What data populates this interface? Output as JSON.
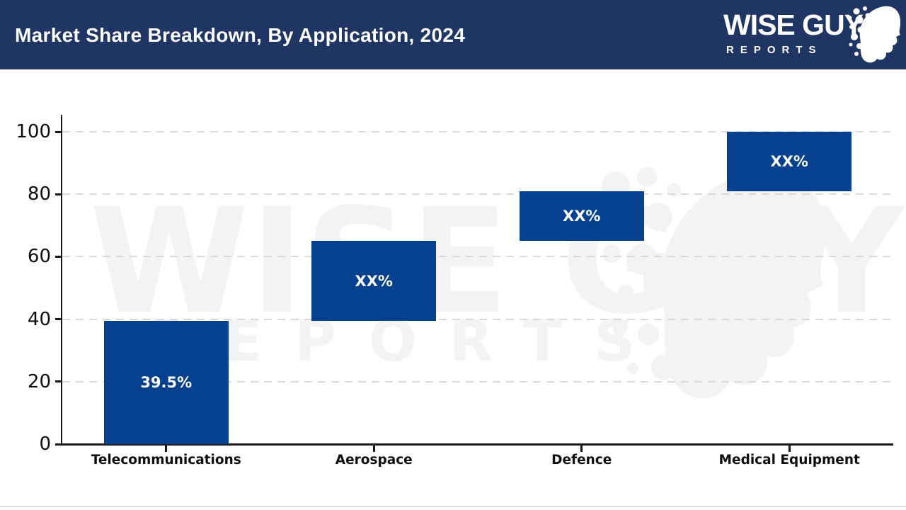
{
  "header": {
    "title": "Market Share Breakdown, By Application, 2024",
    "brand": {
      "line1": "WISE GUY",
      "line2": "REPORTS"
    }
  },
  "watermark": {
    "line1": "WISE GUY",
    "line2": "REPORTS"
  },
  "chart_data": {
    "type": "bar",
    "subtype": "waterfall",
    "title": "Market Share Breakdown, By Application, 2024",
    "xlabel": "",
    "ylabel": "",
    "categories": [
      "Telecommunications",
      "Aerospace",
      "Defence",
      "Medical Equipment"
    ],
    "segments": [
      {
        "category": "Telecommunications",
        "start": 0,
        "end": 39.5,
        "label": "39.5%"
      },
      {
        "category": "Aerospace",
        "start": 39.5,
        "end": 65,
        "label": "XX%"
      },
      {
        "category": "Defence",
        "start": 65,
        "end": 81,
        "label": "XX%"
      },
      {
        "category": "Medical Equipment",
        "start": 81,
        "end": 100,
        "label": "XX%"
      }
    ],
    "yticks": [
      0,
      20,
      40,
      60,
      80,
      100
    ],
    "ylim": [
      0,
      105
    ],
    "grid": "horizontal-dashed",
    "legend": "none",
    "bar_color": "#05418e",
    "bar_label_color": "#ffffff"
  },
  "colors": {
    "header_bg": "#1f3563",
    "bar": "#05418e",
    "gridline": "#d9d9d9",
    "axis": "#1a1a1a",
    "watermark": "#f2f3f5"
  }
}
